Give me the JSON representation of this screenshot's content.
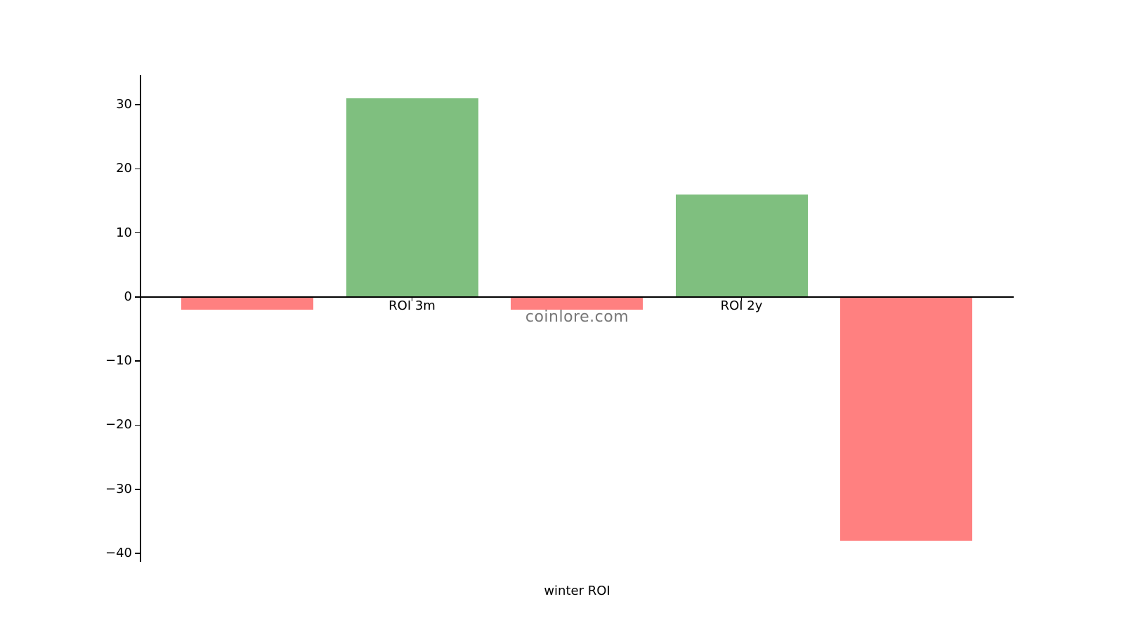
{
  "page": {
    "background": "#ffffff",
    "watermark": "coinlore.com",
    "watermark_color": "#777777"
  },
  "chart_data": {
    "type": "bar",
    "title": "",
    "xlabel": "winter ROI",
    "ylabel": "",
    "categories": [
      "",
      "ROI 3m",
      "",
      "ROI 2y",
      ""
    ],
    "values": [
      -2,
      31,
      -2,
      16,
      -38
    ],
    "bar_colors": [
      "#ff8080",
      "#7fbf7f",
      "#ff8080",
      "#7fbf7f",
      "#ff8080"
    ],
    "positive_color": "#7fbf7f",
    "negative_color": "#ff8080",
    "yticks": [
      30,
      20,
      10,
      0,
      -10,
      -20,
      -30,
      -40
    ],
    "ylim": [
      -41.4,
      34.6
    ],
    "grid": false,
    "legend_position": "none",
    "axis_color": "#000000",
    "text_color": "#000000"
  }
}
